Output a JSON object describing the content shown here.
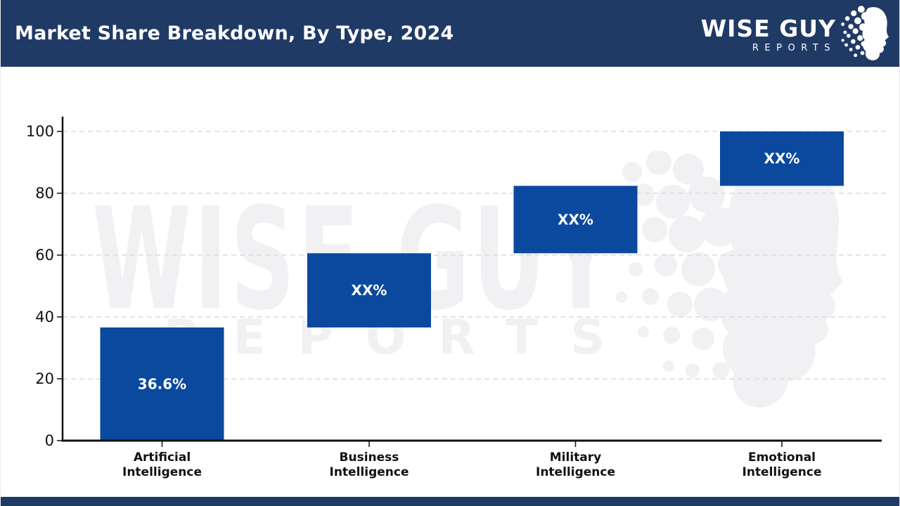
{
  "header": {
    "title": "Market Share Breakdown, By Type, 2024",
    "logo": {
      "line1": "WISE GUY",
      "line2": "REPORTS"
    }
  },
  "watermark": {
    "line1": "WISE GUY",
    "line2": "REPORTS"
  },
  "colors": {
    "header_bg": "#203a66",
    "footer_bg": "#203a66",
    "bar": "#0b499e",
    "grid": "#dcdcdc",
    "axis": "#111111",
    "tick_text": "#111111",
    "bar_label": "#ffffff",
    "title_text": "#ffffff",
    "watermark": "#f1f1f4"
  },
  "chart_data": {
    "type": "bar",
    "variant": "waterfall",
    "title": "Market Share Breakdown, By Type, 2024",
    "categories": [
      "Artificial Intelligence",
      "Business Intelligence",
      "Military Intelligence",
      "Emotional Intelligence"
    ],
    "segments": [
      {
        "category": "Artificial Intelligence",
        "start": 0,
        "end": 36.6,
        "label": "36.6%"
      },
      {
        "category": "Business Intelligence",
        "start": 36.6,
        "end": 60.6,
        "label": "XX%"
      },
      {
        "category": "Military Intelligence",
        "start": 60.6,
        "end": 82.4,
        "label": "XX%"
      },
      {
        "category": "Emotional Intelligence",
        "start": 82.4,
        "end": 100,
        "label": "XX%"
      }
    ],
    "yticks": [
      0,
      20,
      40,
      60,
      80,
      100
    ],
    "ylim": [
      0,
      105
    ],
    "xlabel": "",
    "ylabel": "",
    "grid": "horizontal-dashed",
    "legend": null
  }
}
